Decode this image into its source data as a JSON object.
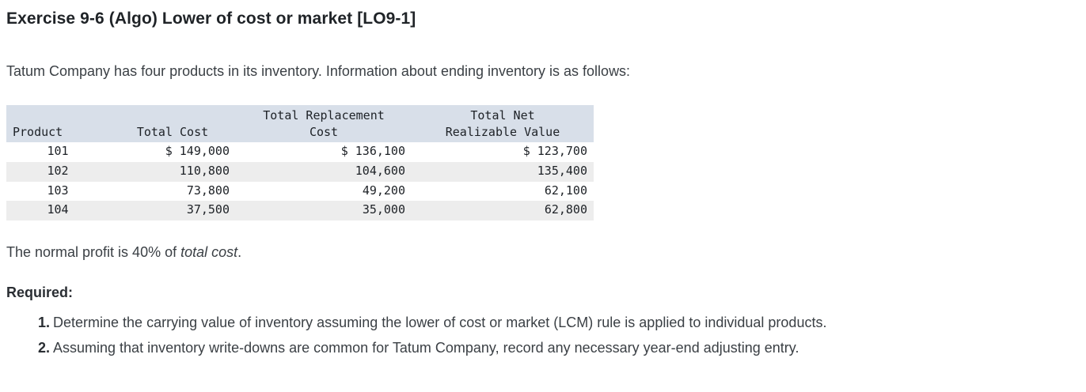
{
  "title": "Exercise 9-6 (Algo) Lower of cost or market [LO9-1]",
  "intro": "Tatum Company has four products in its inventory. Information about ending inventory is as follows:",
  "table": {
    "headers": {
      "product": "Product",
      "total_cost": "Total Cost",
      "total_replacement_cost": "Total Replacement\nCost",
      "total_net_realizable_value": "Total Net\nRealizable Value"
    },
    "rows": [
      [
        "101",
        "$ 149,000",
        "$ 136,100",
        "$ 123,700"
      ],
      [
        "102",
        "110,800",
        "104,600",
        "135,400"
      ],
      [
        "103",
        "73,800",
        "49,200",
        "62,100"
      ],
      [
        "104",
        "37,500",
        "35,000",
        "62,800"
      ]
    ]
  },
  "normal_profit": {
    "prefix": "The normal profit is 40% of ",
    "italic": "total cost",
    "suffix": "."
  },
  "required_label": "Required:",
  "requirements": [
    {
      "num": "1.",
      "text": "Determine the carrying value of inventory assuming the lower of cost or market (LCM) rule is applied to individual products."
    },
    {
      "num": "2.",
      "text": "Assuming that inventory write-downs are common for Tatum Company, record any necessary year-end adjusting entry."
    }
  ],
  "colors": {
    "table_header_bg": "#d8dfe9",
    "table_stripe_bg": "#ededed"
  }
}
